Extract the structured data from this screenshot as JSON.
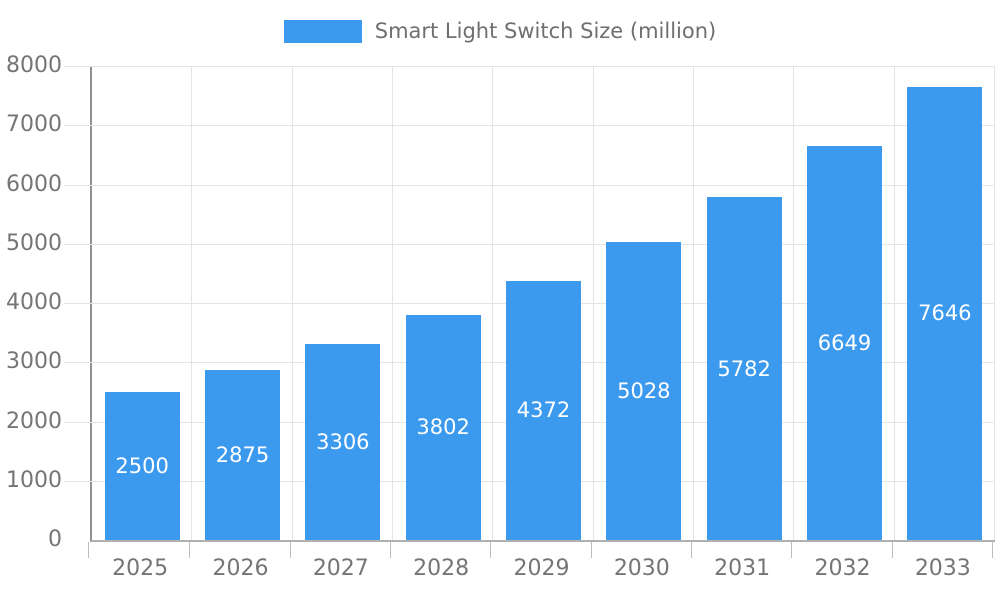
{
  "legend": {
    "label": "Smart Light Switch Size (million)"
  },
  "chart_data": {
    "type": "bar",
    "title": "Smart Light Switch Size (million)",
    "categories": [
      "2025",
      "2026",
      "2027",
      "2028",
      "2029",
      "2030",
      "2031",
      "2032",
      "2033"
    ],
    "values": [
      2500,
      2875,
      3306,
      3802,
      4372,
      5028,
      5782,
      6649,
      7646
    ],
    "value_labels_shown": true,
    "xlabel": "",
    "ylabel": "",
    "ylim": [
      0,
      8000
    ],
    "ytick_interval": 1000,
    "ytick_labels": [
      "0",
      "1000",
      "2000",
      "3000",
      "4000",
      "5000",
      "6000",
      "7000",
      "8000"
    ],
    "grid": "horizontal and vertical gridlines on",
    "legend_position": "top-center",
    "colors": {
      "bar_fill": "#3B99EE",
      "value_label_text": "#FFFFFF",
      "axis_label_text": "#757575",
      "legend_text": "#6F6F6F",
      "gridline": "#E4E4E4",
      "y_axis_line": "#909090",
      "x_axis_line": "#B0B0B0",
      "background": "#FFFFFF"
    }
  }
}
